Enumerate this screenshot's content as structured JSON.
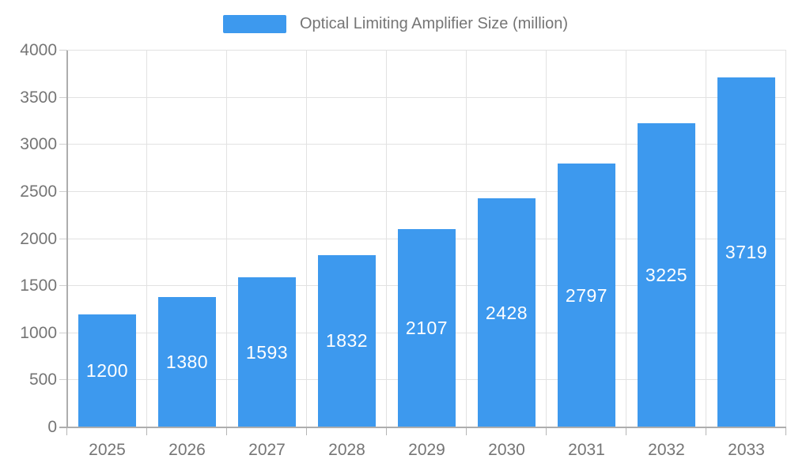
{
  "chart_data": {
    "type": "bar",
    "title": "Optical Limiting Amplifier Size (million)",
    "legend_entries": [
      "Optical Limiting Amplifier Size (million)"
    ],
    "legend_position": "top-center",
    "categories": [
      "2025",
      "2026",
      "2027",
      "2028",
      "2029",
      "2030",
      "2031",
      "2032",
      "2033"
    ],
    "values": [
      1200,
      1380,
      1593,
      1832,
      2107,
      2428,
      2797,
      3225,
      3719
    ],
    "xlabel": "",
    "ylabel": "",
    "ylim": [
      0,
      4000
    ],
    "yticks": [
      0,
      500,
      1000,
      1500,
      2000,
      2500,
      3000,
      3500,
      4000
    ],
    "grid": "horizontal-and-vertical",
    "value_labels": "inside-bar-centered"
  },
  "colors": {
    "bar": "#3D99EE",
    "bar_label": "#FFFFFF",
    "axis_text": "#757575",
    "legend_text": "#757575",
    "gridline": "#E2E2E2",
    "axis_line": "#ADADAD",
    "y_tick": "#CFCFCF",
    "x_tick": "#B5B5B5",
    "background": "#FFFFFF"
  }
}
